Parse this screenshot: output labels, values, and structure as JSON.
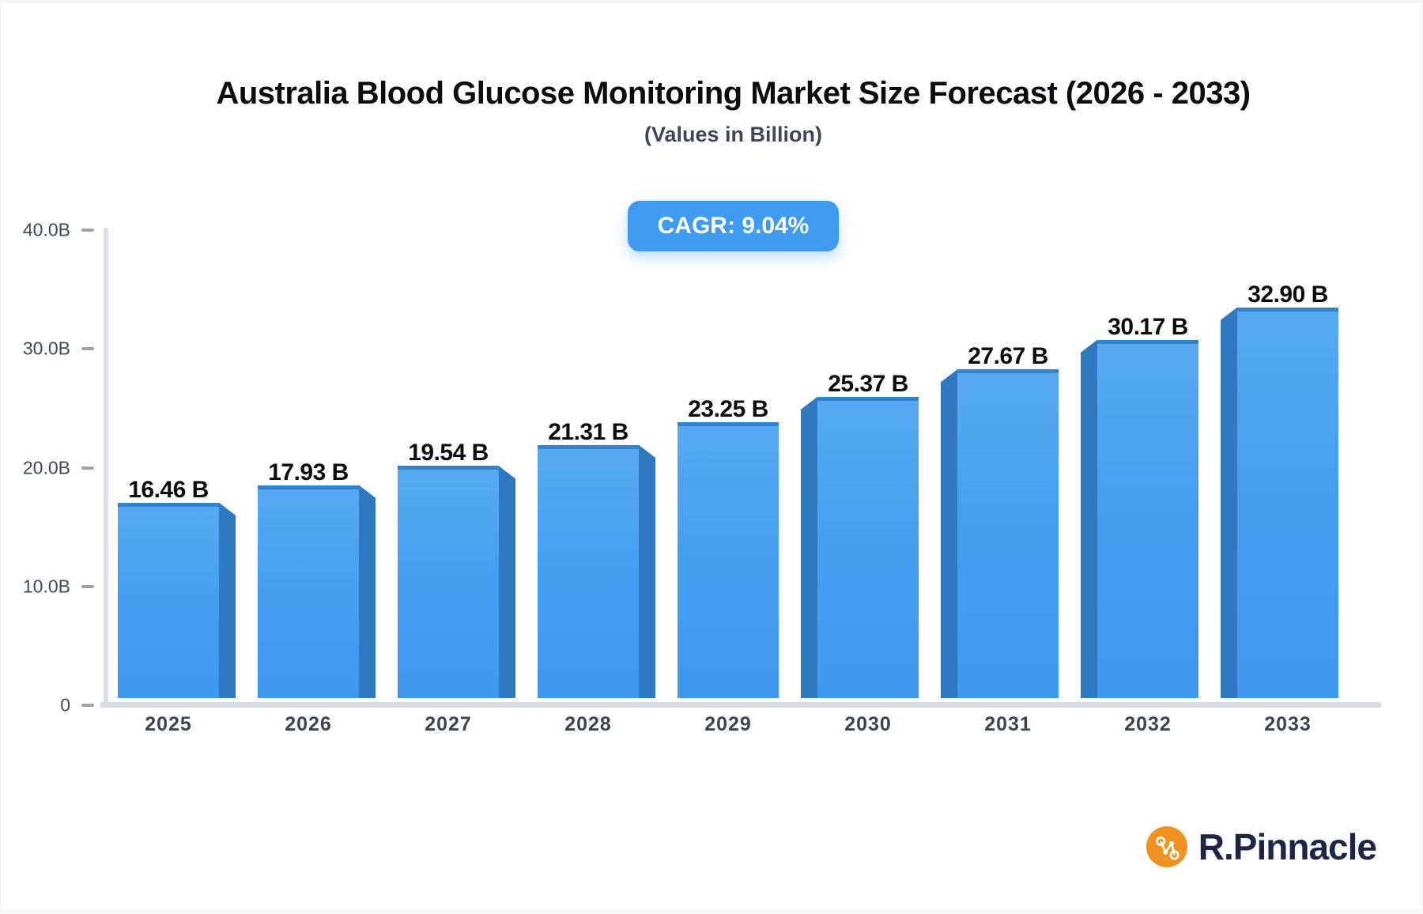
{
  "header": {
    "title": "Australia Blood Glucose Monitoring Market Size Forecast (2026 - 2033)",
    "subtitle": "(Values in Billion)"
  },
  "badge": {
    "label": "CAGR: 9.04%",
    "bg": "#3e9bf0",
    "text_color": "#ffffff"
  },
  "chart_data": {
    "type": "bar",
    "title": "Australia Blood Glucose Monitoring Market Size Forecast (2026 - 2033)",
    "subtitle": "(Values in Billion)",
    "cagr_annotation": "CAGR: 9.04%",
    "categories": [
      "2025",
      "2026",
      "2027",
      "2028",
      "2029",
      "2030",
      "2031",
      "2032",
      "2033"
    ],
    "values": [
      16.46,
      17.93,
      19.54,
      21.31,
      23.25,
      25.37,
      27.67,
      30.17,
      32.9
    ],
    "value_labels": [
      "16.46 B",
      "17.93 B",
      "19.54 B",
      "21.31 B",
      "23.25 B",
      "25.37 B",
      "27.67 B",
      "30.17 B",
      "32.90 B"
    ],
    "xlabel": "",
    "ylabel": "",
    "ylim": [
      0,
      40
    ],
    "yticks": [
      {
        "value": 40,
        "label": "40.0B"
      },
      {
        "value": 30,
        "label": "30.0B"
      },
      {
        "value": 20,
        "label": "20.0B"
      },
      {
        "value": 10,
        "label": "10.0B"
      },
      {
        "value": 0,
        "label": "0"
      }
    ],
    "grid": false,
    "legend": "none",
    "style_3d": "center-vanishing-point",
    "colors": {
      "bar_face_top": "#58a9f1",
      "bar_face_bottom": "#3e98ee",
      "bar_side": "#2e79bf",
      "bar_top_edge": "#2f84cf",
      "axis_line": "#d8dce2",
      "tick_dash": "#9aa4b0",
      "tick_label": "#3e4a59",
      "x_label": "#3a4551",
      "value_label": "#0c0c0c"
    }
  },
  "branding": {
    "name": "R.Pinnacle",
    "icon": "network-nodes-icon",
    "icon_bg": "#f09221",
    "icon_fg": "#ffffff",
    "text_color": "#1e2648"
  }
}
